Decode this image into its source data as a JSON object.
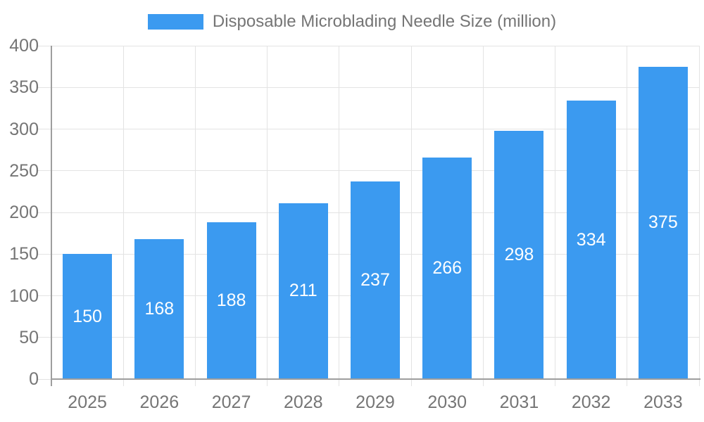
{
  "legend": {
    "label": "Disposable Microblading Needle Size (million)"
  },
  "colors": {
    "bar": "#3b9af0",
    "grid": "#e3e3e3",
    "axis": "#9e9e9e",
    "text": "#757575",
    "bar_label": "#ffffff",
    "background": "#ffffff"
  },
  "chart_data": {
    "type": "bar",
    "title": "Disposable Microblading Needle Size (million)",
    "categories": [
      "2025",
      "2026",
      "2027",
      "2028",
      "2029",
      "2030",
      "2031",
      "2032",
      "2033"
    ],
    "values": [
      150,
      168,
      188,
      211,
      237,
      266,
      298,
      334,
      375
    ],
    "xlabel": "",
    "ylabel": "",
    "ylim": [
      0,
      400
    ],
    "yticks": [
      0,
      50,
      100,
      150,
      200,
      250,
      300,
      350,
      400
    ],
    "grid": true,
    "legend_position": "top",
    "bar_labels": "inside-center"
  }
}
